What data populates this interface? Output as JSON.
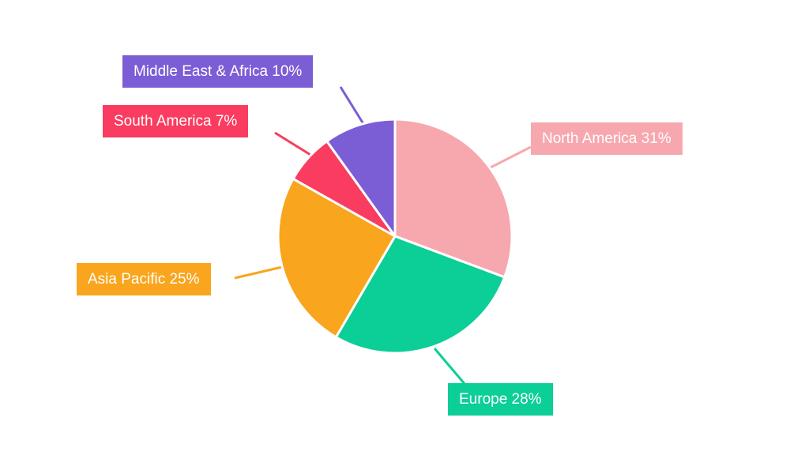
{
  "chart_data": {
    "type": "pie",
    "title": "",
    "labels": [
      "North America",
      "Europe",
      "Asia Pacific",
      "South America",
      "Middle East & Africa"
    ],
    "values": [
      31,
      28,
      25,
      7,
      10
    ],
    "unit": "%",
    "colors": [
      "#F7A8AE",
      "#0CCE97",
      "#F9A51D",
      "#F93C5F",
      "#7B5DD6"
    ],
    "label_texts": [
      "North America 31%",
      "Europe 28%",
      "Asia Pacific 25%",
      "South America 7%",
      "Middle East & Africa 10%"
    ],
    "start_angle": "top",
    "direction": "clockwise",
    "slice_border_color": "#FFFFFF",
    "background": "#FFFFFF",
    "legend_position": "callout-labels"
  }
}
